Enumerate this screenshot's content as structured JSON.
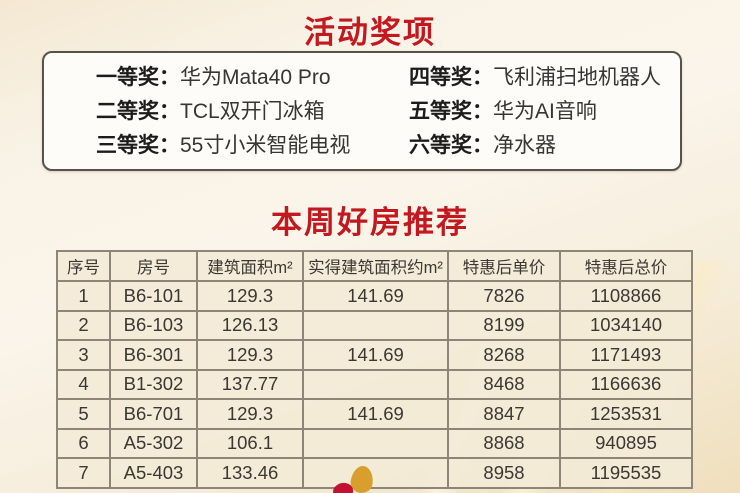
{
  "page": {
    "prizes_title": "活动奖项",
    "housing_title": "本周好房推荐"
  },
  "colors": {
    "title_red": "#c2181f",
    "background_cream": "#f8f1e2",
    "prize_box_bg": "#fdfcf9",
    "prize_box_border": "#56534d",
    "table_cell_bg": "#f3ead7",
    "table_border": "#8d8578",
    "table_text": "#3b3833",
    "gold_petal": "#d89f2e",
    "red_petal": "#c21230"
  },
  "prizes": {
    "items": [
      {
        "label": "一等奖：",
        "value": "华为Mata40 Pro"
      },
      {
        "label": "二等奖：",
        "value": "TCL双开门冰箱"
      },
      {
        "label": "三等奖：",
        "value": "55寸小米智能电视"
      },
      {
        "label": "四等奖：",
        "value": "飞利浦扫地机器人"
      },
      {
        "label": "五等奖：",
        "value": "华为AI音响"
      },
      {
        "label": "六等奖：",
        "value": "净水器"
      }
    ]
  },
  "table": {
    "headers": [
      "序号",
      "房号",
      "建筑面积m²",
      "实得建筑面积约m²",
      "特惠后单价",
      "特惠后总价"
    ],
    "rows": [
      [
        "1",
        "B6-101",
        "129.3",
        "141.69",
        "7826",
        "1108866"
      ],
      [
        "2",
        "B6-103",
        "126.13",
        "",
        "8199",
        "1034140"
      ],
      [
        "3",
        "B6-301",
        "129.3",
        "141.69",
        "8268",
        "1171493"
      ],
      [
        "4",
        "B1-302",
        "137.77",
        "",
        "8468",
        "1166636"
      ],
      [
        "5",
        "B6-701",
        "129.3",
        "141.69",
        "8847",
        "1253531"
      ],
      [
        "6",
        "A5-302",
        "106.1",
        "",
        "8868",
        "940895"
      ],
      [
        "7",
        "A5-403",
        "133.46",
        "",
        "8958",
        "1195535"
      ]
    ]
  },
  "decorations": {
    "gold_petal_icon": "gold-petal-icon",
    "red_petal_icon": "red-petal-icon"
  }
}
